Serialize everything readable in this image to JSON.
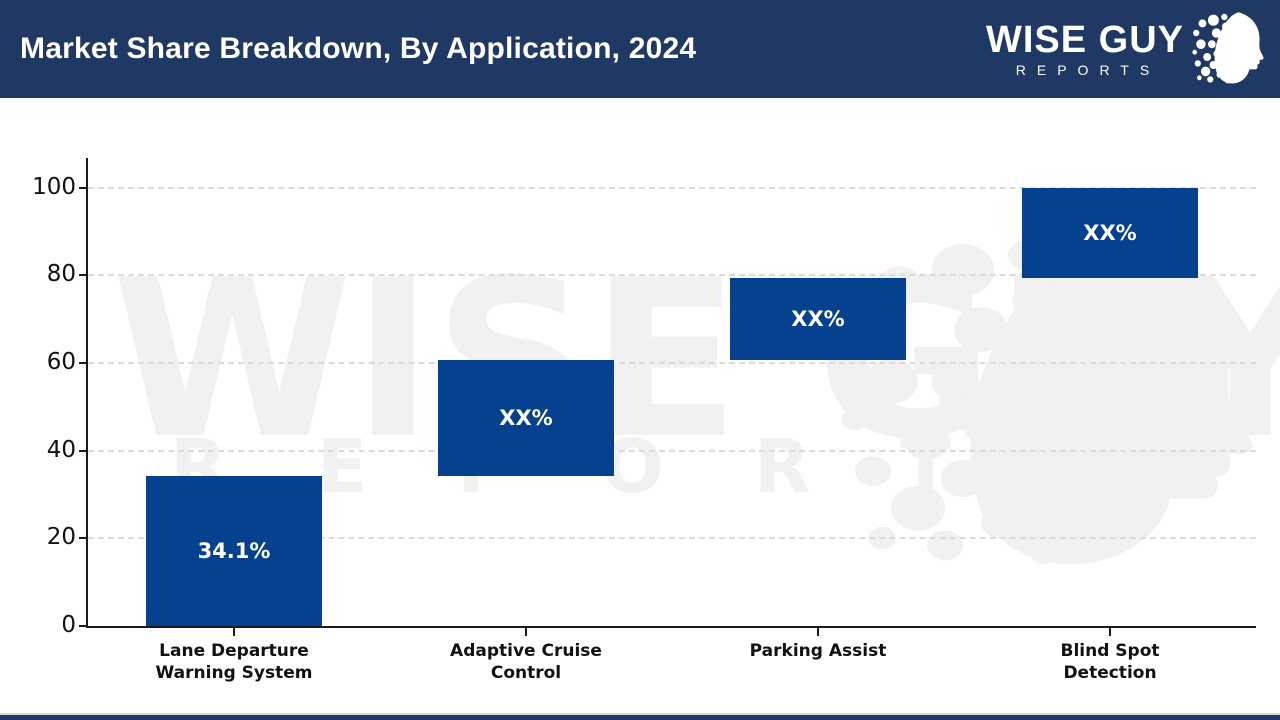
{
  "header": {
    "title": "Market Share Breakdown, By Application, 2024",
    "bg_color": "#1F3864",
    "logo": {
      "line1": "WISE GUY",
      "line2": "REPORTS",
      "icon": "dotted-head-icon"
    }
  },
  "watermark": {
    "line1": "WISE GUY",
    "line2": "R E P O R T S",
    "icon": "dotted-head-watermark"
  },
  "chart_data": {
    "type": "bar",
    "subtype": "waterfall",
    "title": "Market Share Breakdown, By Application, 2024",
    "categories": [
      "Lane Departure\nWarning System",
      "Adaptive Cruise\nControl",
      "Parking Assist",
      "Blind Spot\nDetection"
    ],
    "segments": [
      {
        "category": "Lane Departure Warning System",
        "start": 0,
        "end": 34.1,
        "label": "34.1%"
      },
      {
        "category": "Adaptive Cruise Control",
        "start": 34.1,
        "end": 60.6,
        "label": "XX%"
      },
      {
        "category": "Parking Assist",
        "start": 60.6,
        "end": 79.4,
        "label": "XX%"
      },
      {
        "category": "Blind Spot Detection",
        "start": 79.4,
        "end": 100,
        "label": "XX%"
      }
    ],
    "yticks": [
      0,
      20,
      40,
      60,
      80,
      100
    ],
    "ylim": [
      0,
      100
    ],
    "xlabel": "",
    "ylabel": "",
    "grid": "horizontal-dashed",
    "legend": "none",
    "bar_color": "#05418F",
    "bar_label_color": "#FFFFFF",
    "grid_color": "#DBDBDB",
    "axis_color": "#1A1A1A"
  }
}
